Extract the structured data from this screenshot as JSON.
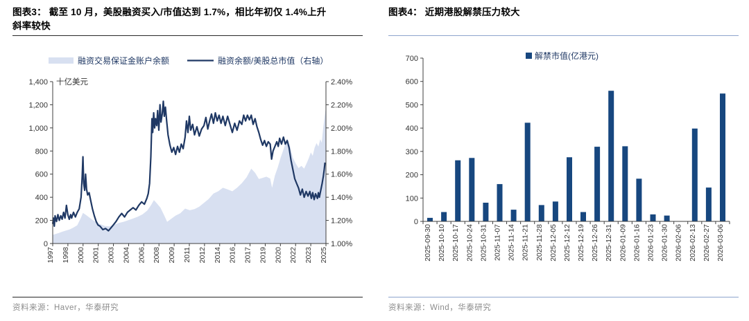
{
  "left_panel": {
    "title": "图表3：  截至 10 月，美股融资买入/市值达到 1.7%，相比年初仅 1.4%上升斜率较快",
    "source": "资料来源：Haver，华泰研究"
  },
  "right_panel": {
    "title": "图表4：  近期港股解禁压力较大",
    "source": "资料来源：Wind，华泰研究"
  },
  "colors": {
    "line_navy": "#1f3864",
    "bar_navy": "#17477f",
    "area_fill": "#d8e0f1",
    "axis": "#3f3f3f",
    "tick_text": "#333333",
    "rule_dark": "#262626",
    "rule_blue": "#8ca3cc"
  },
  "chart_data": [
    {
      "type": "line",
      "subtype": "area+line-combo",
      "unit_label": "十亿美元",
      "legend_position": "top",
      "x_range": [
        1997,
        2025.9
      ],
      "x_tick_labels": [
        "1997",
        "1998",
        "2000",
        "2001",
        "2003",
        "2004",
        "2006",
        "2008",
        "2009",
        "2011",
        "2012",
        "2014",
        "2016",
        "2017",
        "2019",
        "2020",
        "2022",
        "2023",
        "2025"
      ],
      "left_axis": {
        "min": 0,
        "max": 1400,
        "labels": [
          "0",
          "200",
          "400",
          "600",
          "800",
          "1,000",
          "1,200",
          "1,400"
        ]
      },
      "right_axis": {
        "min": 1.0,
        "max": 2.4,
        "labels": [
          "1.00%",
          "1.20%",
          "1.40%",
          "1.60%",
          "1.80%",
          "2.00%",
          "2.20%",
          "2.40%"
        ]
      },
      "series": [
        {
          "name": "融资交易保证金账户余额",
          "type": "area",
          "axis": "left",
          "color": "#d8e0f1",
          "points": [
            [
              1997.0,
              75
            ],
            [
              1997.3,
              82
            ],
            [
              1997.6,
              90
            ],
            [
              1998.0,
              102
            ],
            [
              1998.4,
              112
            ],
            [
              1998.8,
              122
            ],
            [
              1999.2,
              138
            ],
            [
              1999.6,
              158
            ],
            [
              2000.0,
              225
            ],
            [
              2000.2,
              265
            ],
            [
              2000.5,
              248
            ],
            [
              2000.8,
              230
            ],
            [
              2001.2,
              205
            ],
            [
              2001.6,
              182
            ],
            [
              2002.0,
              168
            ],
            [
              2002.5,
              152
            ],
            [
              2003.0,
              148
            ],
            [
              2003.5,
              162
            ],
            [
              2004.0,
              178
            ],
            [
              2004.5,
              188
            ],
            [
              2005.0,
              202
            ],
            [
              2005.5,
              216
            ],
            [
              2006.0,
              232
            ],
            [
              2006.5,
              252
            ],
            [
              2007.0,
              285
            ],
            [
              2007.4,
              332
            ],
            [
              2007.7,
              375
            ],
            [
              2008.0,
              348
            ],
            [
              2008.4,
              310
            ],
            [
              2008.8,
              242
            ],
            [
              2009.1,
              188
            ],
            [
              2009.5,
              212
            ],
            [
              2010.0,
              242
            ],
            [
              2010.5,
              262
            ],
            [
              2011.0,
              302
            ],
            [
              2011.5,
              288
            ],
            [
              2012.0,
              298
            ],
            [
              2012.5,
              318
            ],
            [
              2013.0,
              352
            ],
            [
              2013.5,
              385
            ],
            [
              2014.0,
              432
            ],
            [
              2014.5,
              452
            ],
            [
              2015.0,
              482
            ],
            [
              2015.5,
              468
            ],
            [
              2016.0,
              452
            ],
            [
              2016.5,
              482
            ],
            [
              2017.0,
              522
            ],
            [
              2017.5,
              572
            ],
            [
              2018.0,
              648
            ],
            [
              2018.4,
              612
            ],
            [
              2018.8,
              558
            ],
            [
              2019.2,
              568
            ],
            [
              2019.6,
              578
            ],
            [
              2020.0,
              562
            ],
            [
              2020.2,
              482
            ],
            [
              2020.5,
              588
            ],
            [
              2020.8,
              658
            ],
            [
              2021.1,
              742
            ],
            [
              2021.4,
              812
            ],
            [
              2021.8,
              912
            ],
            [
              2022.1,
              842
            ],
            [
              2022.4,
              742
            ],
            [
              2022.7,
              692
            ],
            [
              2023.0,
              652
            ],
            [
              2023.3,
              672
            ],
            [
              2023.6,
              648
            ],
            [
              2023.9,
              702
            ],
            [
              2024.1,
              742
            ],
            [
              2024.3,
              788
            ],
            [
              2024.5,
              758
            ],
            [
              2024.7,
              828
            ],
            [
              2024.9,
              868
            ],
            [
              2025.1,
              838
            ],
            [
              2025.3,
              902
            ],
            [
              2025.45,
              872
            ],
            [
              2025.6,
              992
            ],
            [
              2025.7,
              1062
            ],
            [
              2025.8,
              1120
            ],
            [
              2025.9,
              1178
            ]
          ]
        },
        {
          "name": "融资余额/美股总市值（右轴）",
          "type": "line",
          "axis": "right",
          "color": "#1f3864",
          "points": [
            [
              1997,
              1.17
            ],
            [
              1997.08,
              1.22
            ],
            [
              1997.17,
              1.15
            ],
            [
              1997.25,
              1.24
            ],
            [
              1997.4,
              1.19
            ],
            [
              1997.55,
              1.25
            ],
            [
              1997.7,
              1.2
            ],
            [
              1997.85,
              1.24
            ],
            [
              1998,
              1.21
            ],
            [
              1998.15,
              1.27
            ],
            [
              1998.3,
              1.22
            ],
            [
              1998.45,
              1.33
            ],
            [
              1998.6,
              1.25
            ],
            [
              1998.75,
              1.21
            ],
            [
              1998.9,
              1.25
            ],
            [
              1999,
              1.22
            ],
            [
              1999.2,
              1.27
            ],
            [
              1999.4,
              1.23
            ],
            [
              1999.6,
              1.27
            ],
            [
              1999.8,
              1.3
            ],
            [
              2000,
              1.4
            ],
            [
              2000.12,
              1.58
            ],
            [
              2000.2,
              1.75
            ],
            [
              2000.28,
              1.52
            ],
            [
              2000.38,
              1.46
            ],
            [
              2000.48,
              1.6
            ],
            [
              2000.58,
              1.47
            ],
            [
              2000.7,
              1.42
            ],
            [
              2000.85,
              1.44
            ],
            [
              2001,
              1.38
            ],
            [
              2001.2,
              1.3
            ],
            [
              2001.4,
              1.24
            ],
            [
              2001.6,
              1.19
            ],
            [
              2001.8,
              1.16
            ],
            [
              2002,
              1.15
            ],
            [
              2002.3,
              1.12
            ],
            [
              2002.6,
              1.13
            ],
            [
              2002.9,
              1.11
            ],
            [
              2003.1,
              1.13
            ],
            [
              2003.4,
              1.16
            ],
            [
              2003.7,
              1.19
            ],
            [
              2004,
              1.23
            ],
            [
              2004.3,
              1.26
            ],
            [
              2004.6,
              1.23
            ],
            [
              2004.9,
              1.27
            ],
            [
              2005.2,
              1.29
            ],
            [
              2005.5,
              1.31
            ],
            [
              2005.8,
              1.29
            ],
            [
              2006.1,
              1.33
            ],
            [
              2006.4,
              1.36
            ],
            [
              2006.7,
              1.34
            ],
            [
              2006.95,
              1.39
            ],
            [
              2007.1,
              1.43
            ],
            [
              2007.25,
              1.52
            ],
            [
              2007.38,
              1.75
            ],
            [
              2007.5,
              2.08
            ],
            [
              2007.58,
              1.96
            ],
            [
              2007.68,
              2.13
            ],
            [
              2007.78,
              2
            ],
            [
              2007.88,
              2.08
            ],
            [
              2008,
              2.02
            ],
            [
              2008.1,
              2.15
            ],
            [
              2008.22,
              1.98
            ],
            [
              2008.35,
              2.2
            ],
            [
              2008.45,
              2.05
            ],
            [
              2008.58,
              2.12
            ],
            [
              2008.7,
              2.23
            ],
            [
              2008.8,
              2.1
            ],
            [
              2008.92,
              2.18
            ],
            [
              2009.05,
              2.06
            ],
            [
              2009.2,
              1.94
            ],
            [
              2009.4,
              1.85
            ],
            [
              2009.6,
              1.79
            ],
            [
              2009.8,
              1.83
            ],
            [
              2010,
              1.77
            ],
            [
              2010.2,
              1.84
            ],
            [
              2010.4,
              1.79
            ],
            [
              2010.6,
              1.86
            ],
            [
              2010.8,
              1.82
            ],
            [
              2011,
              1.92
            ],
            [
              2011.15,
              2.06
            ],
            [
              2011.3,
              1.96
            ],
            [
              2011.45,
              2.1
            ],
            [
              2011.6,
              1.98
            ],
            [
              2011.8,
              2.03
            ],
            [
              2012,
              1.94
            ],
            [
              2012.25,
              2.01
            ],
            [
              2012.5,
              1.93
            ],
            [
              2012.75,
              1.99
            ],
            [
              2013,
              2.02
            ],
            [
              2013.2,
              2.09
            ],
            [
              2013.4,
              1.99
            ],
            [
              2013.6,
              2.06
            ],
            [
              2013.8,
              2.12
            ],
            [
              2014,
              2.04
            ],
            [
              2014.2,
              2.13
            ],
            [
              2014.4,
              2.06
            ],
            [
              2014.6,
              2.11
            ],
            [
              2014.8,
              2.04
            ],
            [
              2015,
              2.1
            ],
            [
              2015.25,
              2.02
            ],
            [
              2015.5,
              2.1
            ],
            [
              2015.75,
              2.03
            ],
            [
              2016,
              1.96
            ],
            [
              2016.25,
              2.04
            ],
            [
              2016.5,
              1.98
            ],
            [
              2016.75,
              2.06
            ],
            [
              2017,
              2.03
            ],
            [
              2017.2,
              2.11
            ],
            [
              2017.4,
              2.06
            ],
            [
              2017.6,
              2.11
            ],
            [
              2017.8,
              2.07
            ],
            [
              2018,
              2.11
            ],
            [
              2018.2,
              2.03
            ],
            [
              2018.4,
              2.08
            ],
            [
              2018.6,
              2.01
            ],
            [
              2018.8,
              1.96
            ],
            [
              2019,
              1.9
            ],
            [
              2019.2,
              1.85
            ],
            [
              2019.4,
              1.89
            ],
            [
              2019.6,
              1.84
            ],
            [
              2019.8,
              1.88
            ],
            [
              2020,
              1.86
            ],
            [
              2020.15,
              1.73
            ],
            [
              2020.3,
              1.8
            ],
            [
              2020.5,
              1.84
            ],
            [
              2020.7,
              1.88
            ],
            [
              2020.85,
              1.84
            ],
            [
              2021,
              1.91
            ],
            [
              2021.2,
              1.86
            ],
            [
              2021.4,
              1.92
            ],
            [
              2021.6,
              1.86
            ],
            [
              2021.8,
              1.89
            ],
            [
              2022,
              1.83
            ],
            [
              2022.2,
              1.72
            ],
            [
              2022.4,
              1.64
            ],
            [
              2022.6,
              1.56
            ],
            [
              2022.8,
              1.52
            ],
            [
              2023,
              1.48
            ],
            [
              2023.2,
              1.42
            ],
            [
              2023.4,
              1.47
            ],
            [
              2023.6,
              1.4
            ],
            [
              2023.8,
              1.45
            ],
            [
              2024,
              1.41
            ],
            [
              2024.2,
              1.45
            ],
            [
              2024.35,
              1.39
            ],
            [
              2024.5,
              1.44
            ],
            [
              2024.65,
              1.38
            ],
            [
              2024.8,
              1.43
            ],
            [
              2025,
              1.39
            ],
            [
              2025.1,
              1.44
            ],
            [
              2025.2,
              1.4
            ],
            [
              2025.35,
              1.46
            ],
            [
              2025.5,
              1.52
            ],
            [
              2025.62,
              1.58
            ],
            [
              2025.72,
              1.64
            ],
            [
              2025.8,
              1.7
            ]
          ]
        }
      ]
    },
    {
      "type": "bar",
      "legend": "解禁市值(亿港元)",
      "bar_color": "#17477f",
      "categories": [
        "2025-09-30",
        "2025-10-10",
        "2025-10-17",
        "2025-10-24",
        "2025-10-31",
        "2025-11-07",
        "2025-11-14",
        "2025-11-21",
        "2025-11-28",
        "2025-12-05",
        "2025-12-12",
        "2025-12-19",
        "2025-12-26",
        "2025-12-31",
        "2026-01-09",
        "2026-01-16",
        "2026-01-23",
        "2026-01-30",
        "2026-02-06",
        "2026-02-13",
        "2026-02-27",
        "2026-03-06"
      ],
      "values": [
        15,
        40,
        262,
        272,
        80,
        160,
        50,
        423,
        70,
        85,
        275,
        40,
        320,
        560,
        322,
        183,
        30,
        25,
        0,
        398,
        145,
        548
      ],
      "ylim": [
        0,
        700
      ],
      "y_tick_labels": [
        "0",
        "100",
        "200",
        "300",
        "400",
        "500",
        "600",
        "700"
      ],
      "legend_position": "top"
    }
  ]
}
